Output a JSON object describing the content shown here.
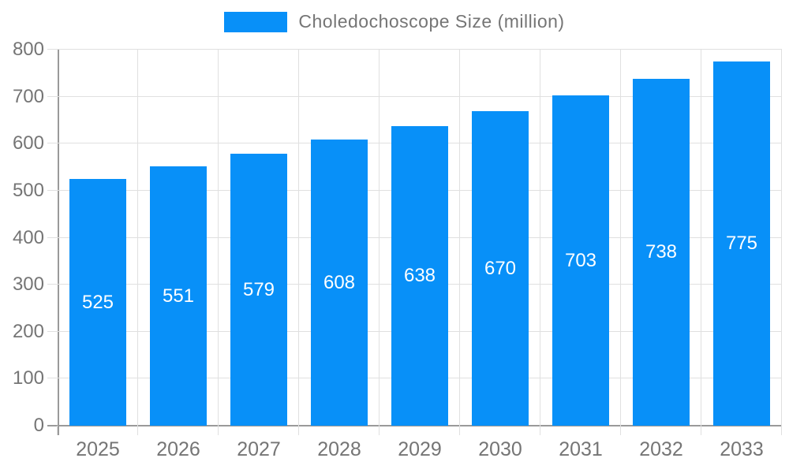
{
  "legend": {
    "label": "Choledochoscope Size (million)"
  },
  "colors": {
    "bar": "#0890f8",
    "axis_line": "#9a9a9a",
    "gridline": "#e0e0e0",
    "tick_label": "#757575",
    "bar_label": "#ffffff",
    "legend_text": "#757575"
  },
  "chart_data": {
    "type": "bar",
    "title": "",
    "categories": [
      "2025",
      "2026",
      "2027",
      "2028",
      "2029",
      "2030",
      "2031",
      "2032",
      "2033"
    ],
    "series": [
      {
        "name": "Choledochoscope Size (million)",
        "values": [
          525,
          551,
          579,
          608,
          638,
          670,
          703,
          738,
          775
        ]
      }
    ],
    "xlabel": "",
    "ylabel": "",
    "ylim": [
      0,
      800
    ],
    "yticks": [
      0,
      100,
      200,
      300,
      400,
      500,
      600,
      700,
      800
    ],
    "grid": "both",
    "legend_position": "top-center",
    "bar_labels_inside": true,
    "bar_label_position": "middle"
  }
}
